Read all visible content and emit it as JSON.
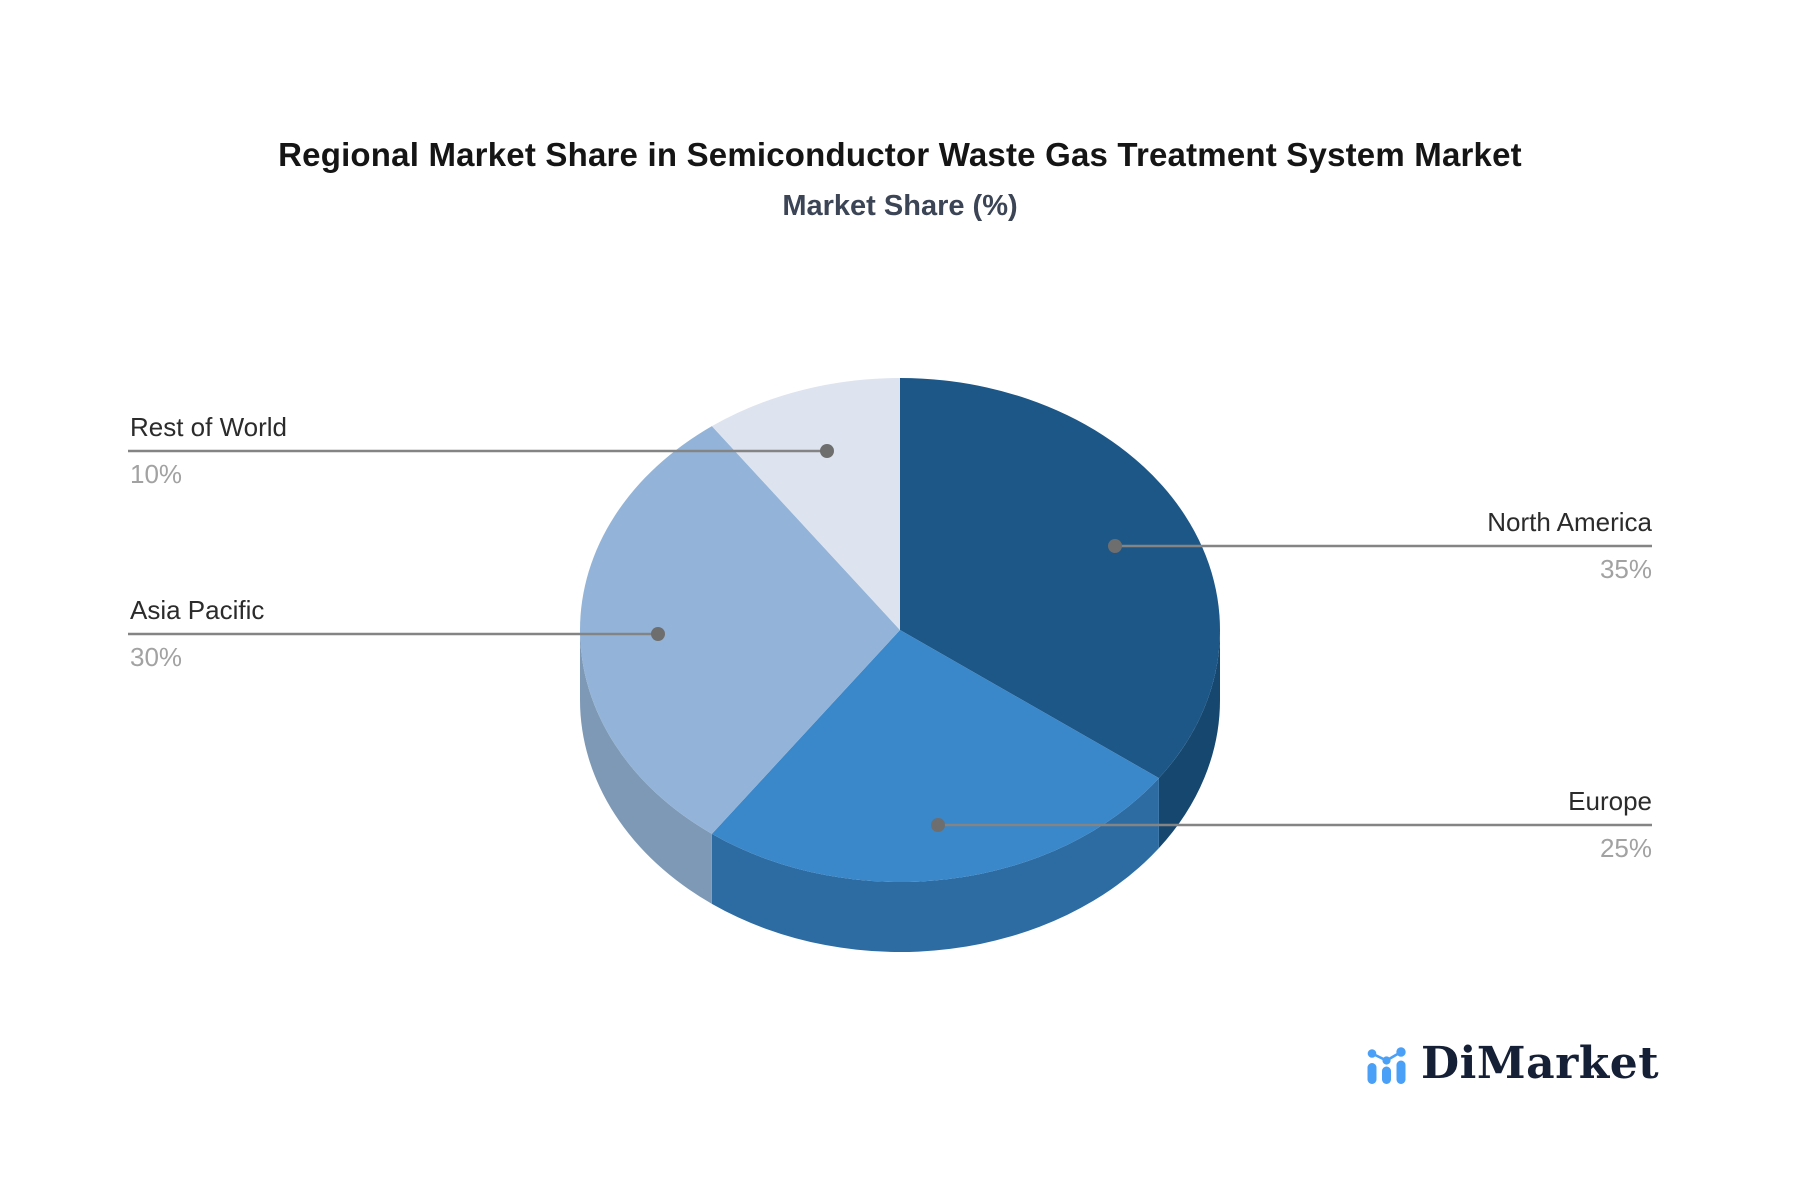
{
  "chart_data": {
    "type": "pie",
    "title": "Regional Market Share in Semiconductor Waste Gas Treatment System Market",
    "subtitle": "Market Share (%)",
    "unit": "%",
    "total": 100,
    "start_angle_deg": 0,
    "direction": "clockwise",
    "style": "3d-pie-with-callout-labels",
    "legend_position": "none",
    "slices": [
      {
        "label": "North America",
        "value": 35,
        "value_label": "35%",
        "color": "#1d5787",
        "side_color": "#16476e"
      },
      {
        "label": "Europe",
        "value": 25,
        "value_label": "25%",
        "color": "#3a87c9",
        "side_color": "#2d6ca3"
      },
      {
        "label": "Asia Pacific",
        "value": 30,
        "value_label": "30%",
        "color": "#93b4d8",
        "side_color": "#7e99b6"
      },
      {
        "label": "Rest of World",
        "value": 10,
        "value_label": "10%",
        "color": "#dde3ef",
        "side_color": "#c5cfdf"
      }
    ]
  },
  "colors": {
    "background": "#ffffff",
    "leader_line": "#848484",
    "leader_dot": "#6e6e6e",
    "label_text": "#2b2b2b",
    "value_text": "#a2a2a2",
    "title_text": "#151515",
    "subtitle_text": "#3b4555",
    "logo_blue": "#49a0f6",
    "logo_navy": "#152036"
  },
  "branding": {
    "logo_text": "DiMarket",
    "logo_icon": "bar-chart-logo-icon"
  }
}
